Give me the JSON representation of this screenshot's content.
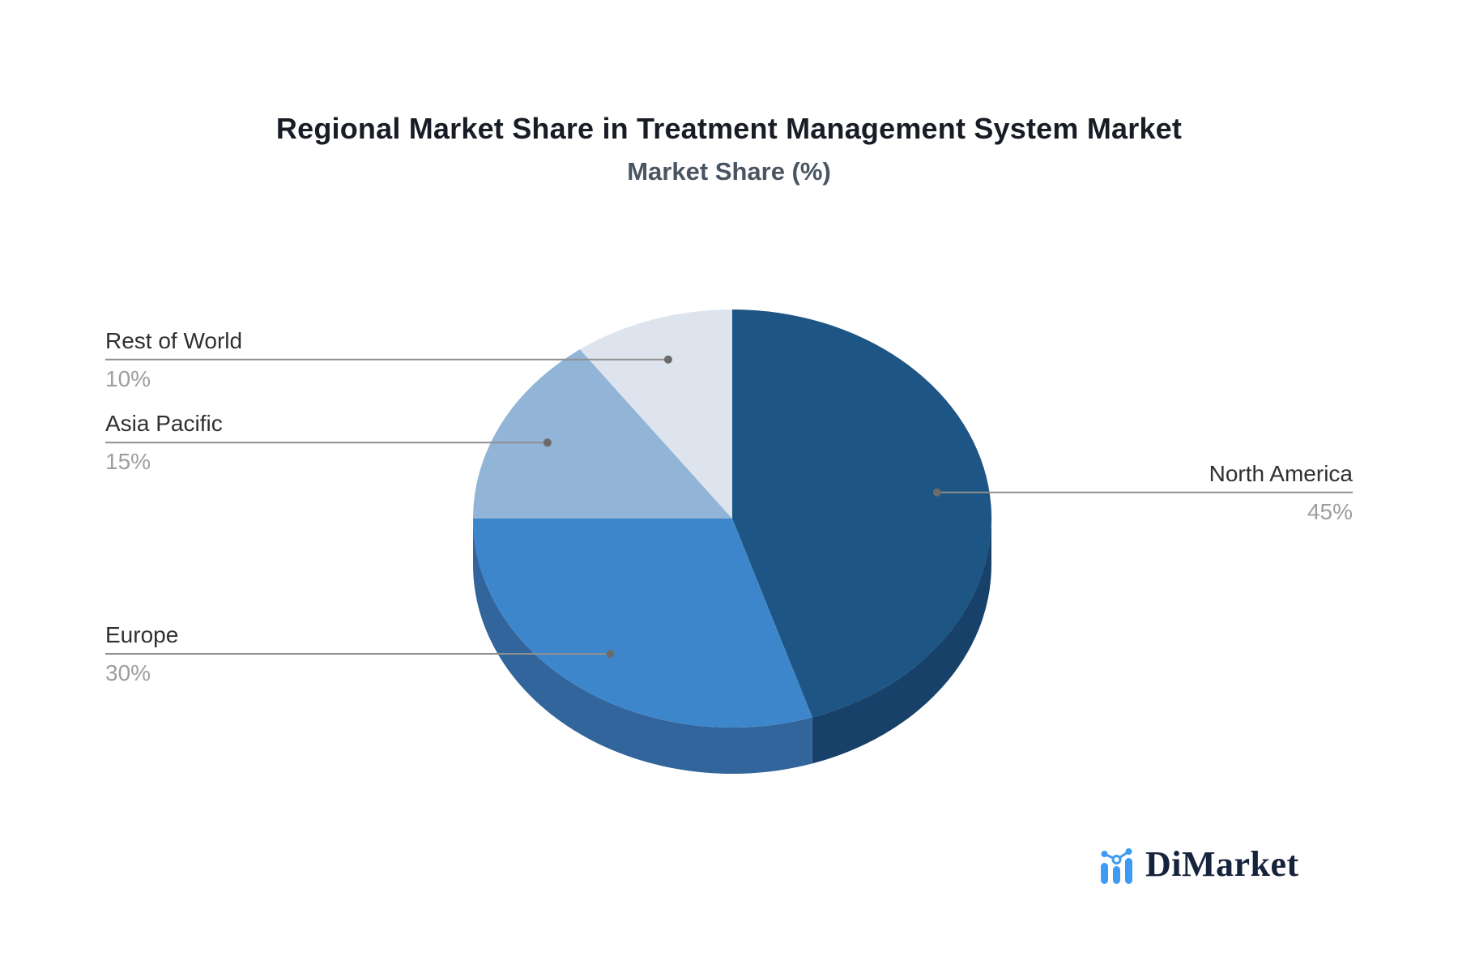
{
  "page": {
    "background": "#ffffff"
  },
  "header": {
    "title": "Regional Market Share in Treatment Management System Market",
    "subtitle": "Market Share (%)"
  },
  "chart_data": {
    "type": "pie",
    "title": "Regional Market Share in Treatment Management System Market",
    "subtitle": "Market Share (%)",
    "unit": "%",
    "start_angle_deg": 0,
    "direction": "clockwise",
    "effect": "3d-extruded",
    "legend": "none",
    "slices": [
      {
        "label": "North America",
        "value": 45,
        "pct_label": "45%",
        "color": "#1d5585",
        "side_color": "#174168",
        "label_side": "right"
      },
      {
        "label": "Europe",
        "value": 30,
        "pct_label": "30%",
        "color": "#3e86cb",
        "side_color": "#31659b",
        "label_side": "left"
      },
      {
        "label": "Asia Pacific",
        "value": 15,
        "pct_label": "15%",
        "color": "#92b4d7",
        "side_color": "#7495b4",
        "label_side": "left"
      },
      {
        "label": "Rest of World",
        "value": 10,
        "pct_label": "10%",
        "color": "#dde4ee",
        "side_color": "#b9c3d2",
        "label_side": "left"
      }
    ],
    "label_text_color": "#303030",
    "pct_text_color": "#9e9e9e",
    "leader_line_color": "#8f8f8f",
    "leader_dot_color": "#6b6b6b"
  },
  "logo": {
    "text": "DiMarket",
    "icon": "bar-line-chart-icon",
    "icon_color": "#3e9bf4",
    "text_color": "#16233c"
  }
}
